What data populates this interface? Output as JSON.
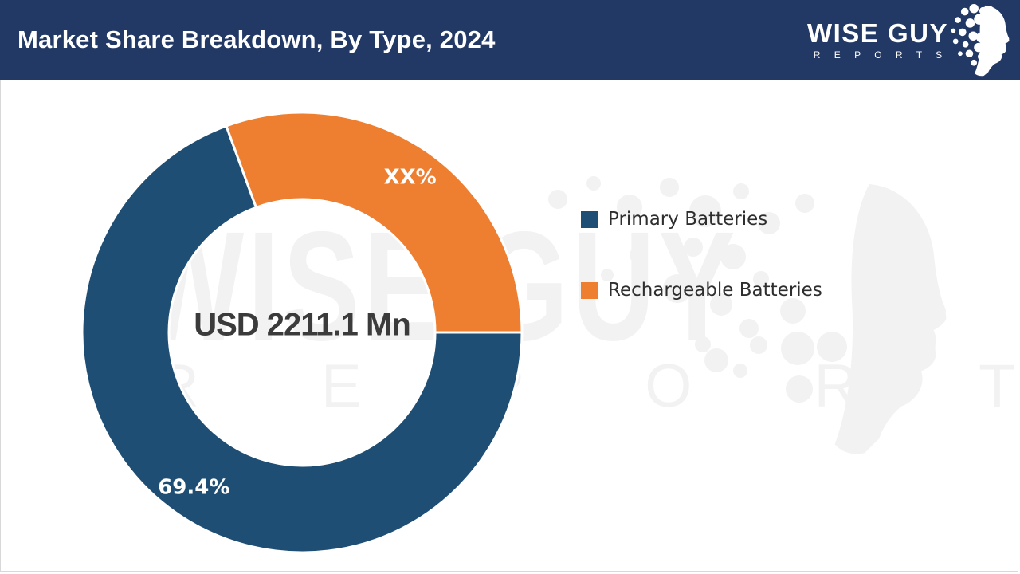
{
  "header": {
    "title": "Market Share Breakdown, By Type, 2024",
    "background_color": "#223865",
    "logo": {
      "line1": "WISE GUY",
      "line2": "R E P O R T S"
    }
  },
  "chart_data": {
    "type": "pie",
    "subtype": "donut",
    "title": "Market Share Breakdown, By Type, 2024",
    "center_label": "USD 2211.1 Mn",
    "legend_position": "right",
    "start_angle_deg": 110.16,
    "series": [
      {
        "name": "Primary Batteries",
        "value_pct": 69.4,
        "display_label": "69.4%",
        "color": "#1F4E74"
      },
      {
        "name": "Rechargeable Batteries",
        "value_pct": 30.6,
        "display_label": "XX%",
        "color": "#EE7E30"
      }
    ],
    "watermark": {
      "line1": "WISE GUY",
      "line2": "R E P O R T S"
    }
  }
}
